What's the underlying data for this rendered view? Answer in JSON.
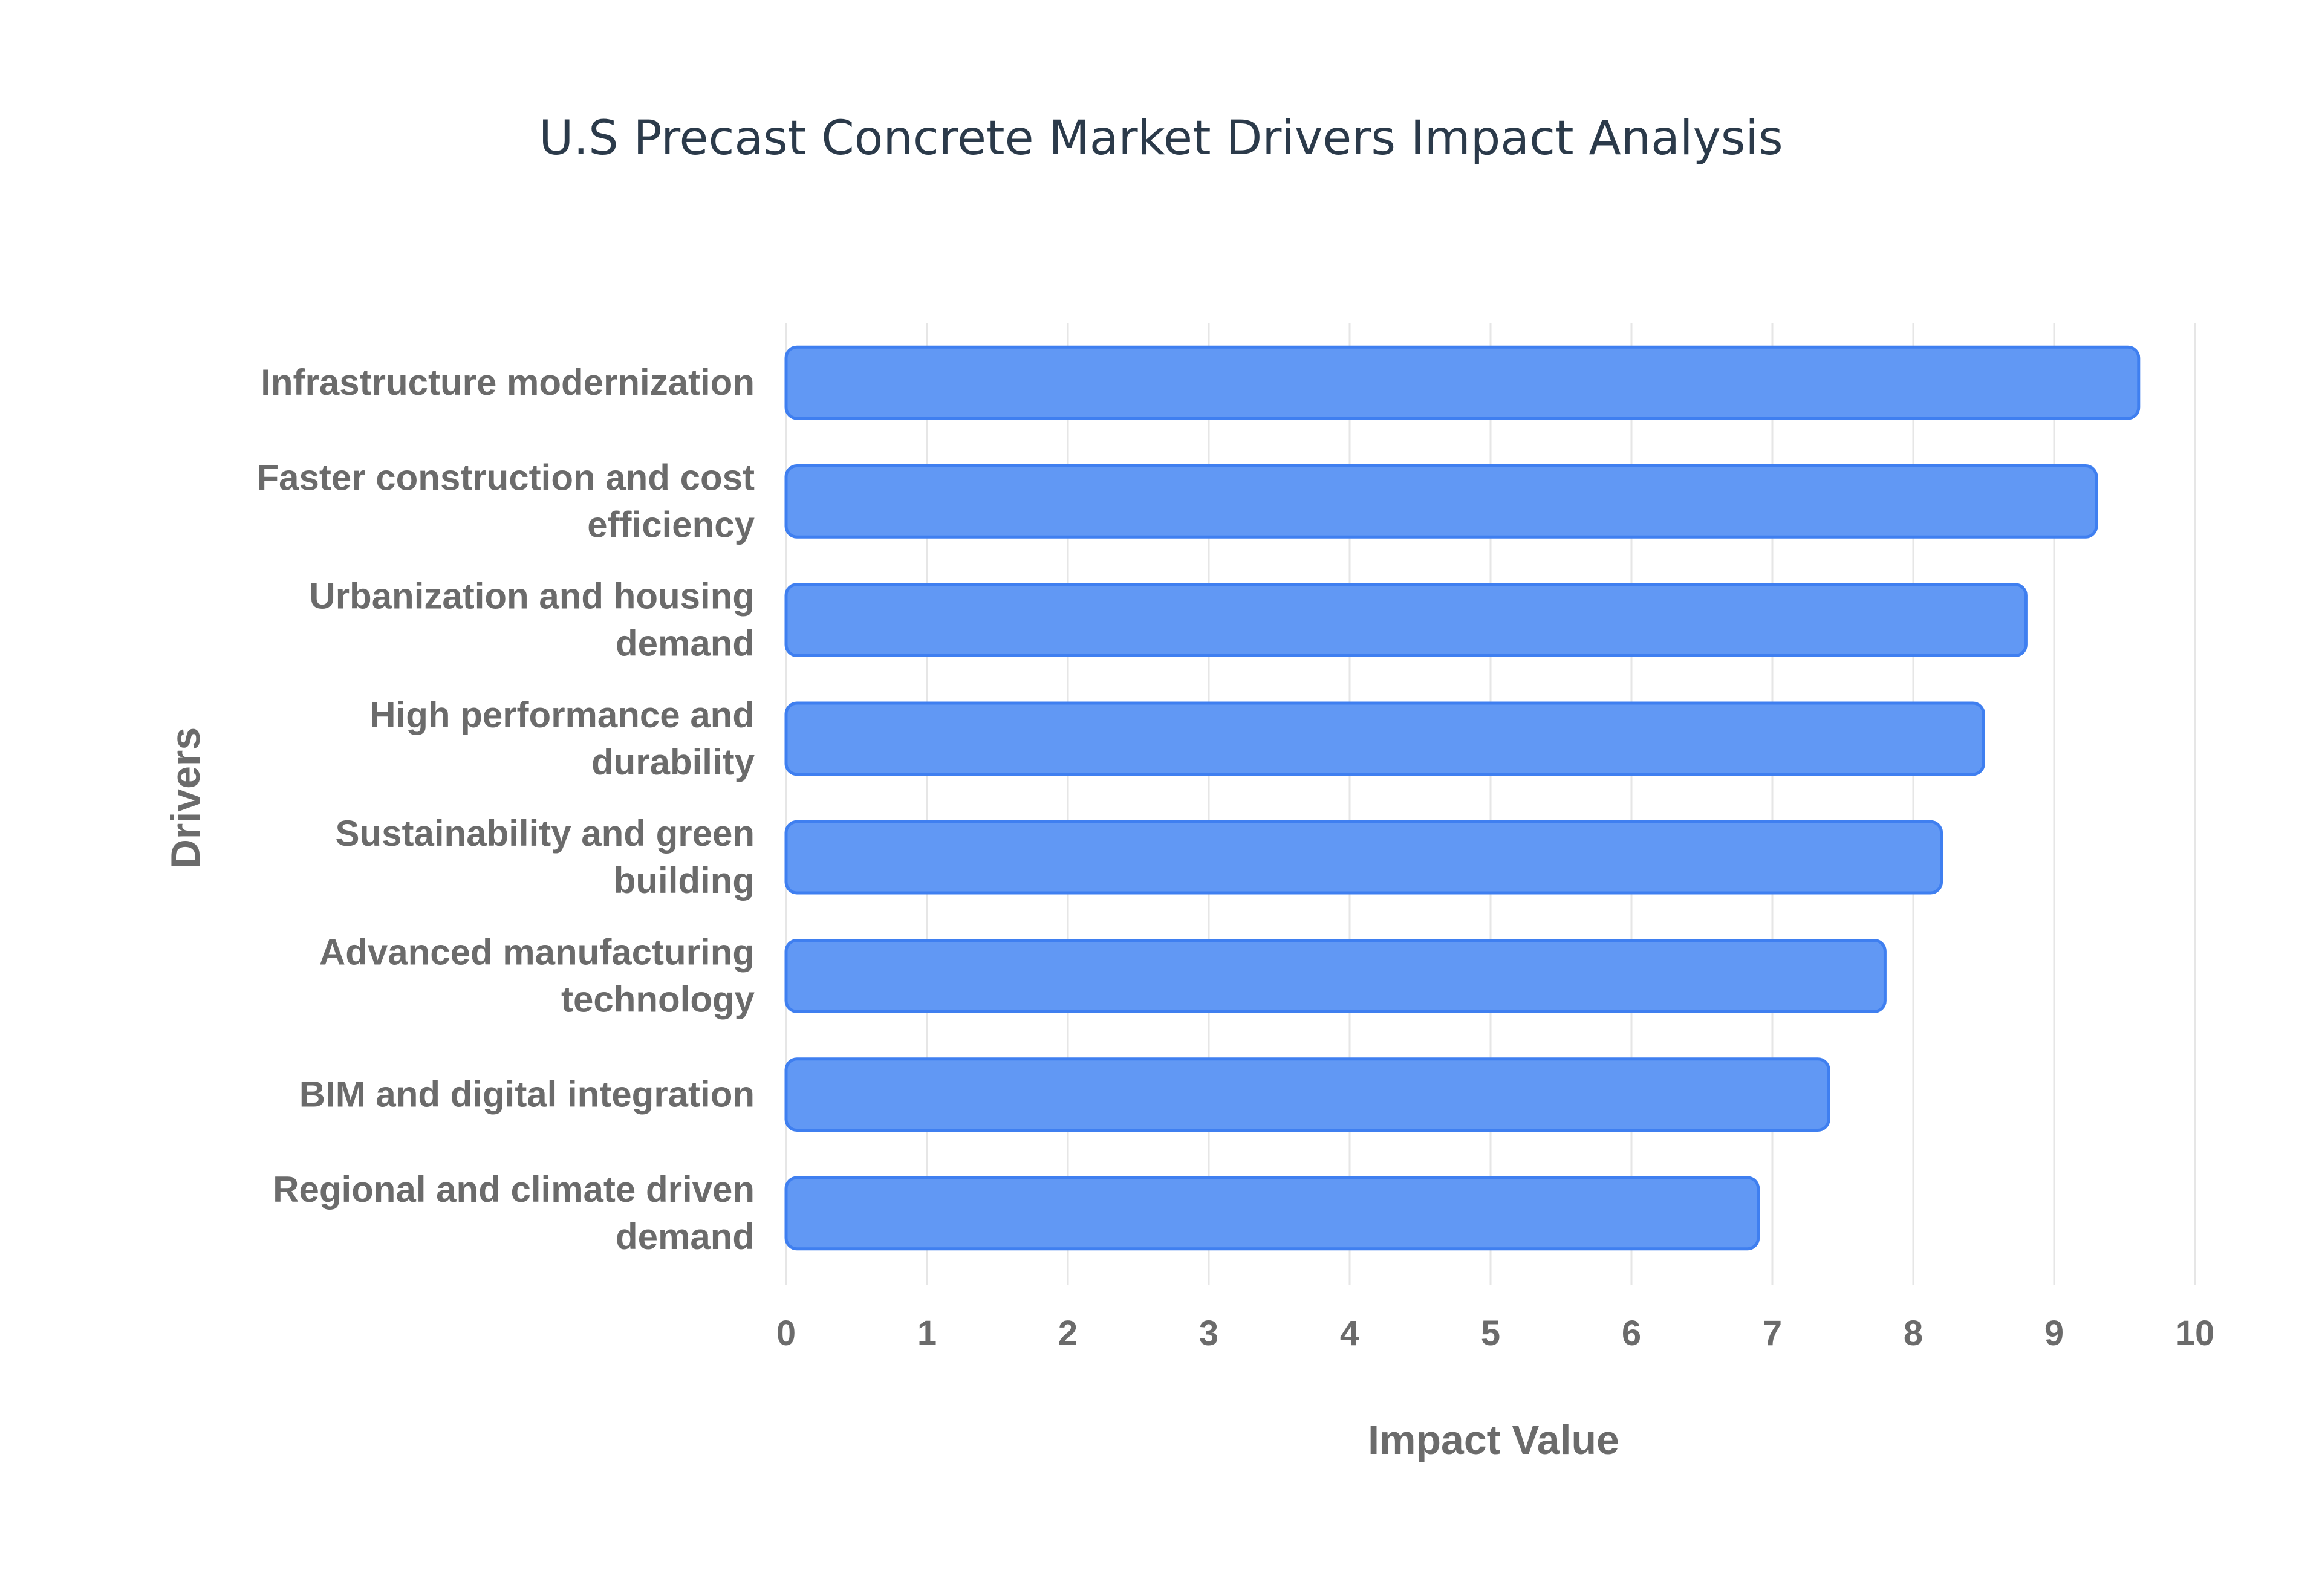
{
  "chart_data": {
    "type": "bar",
    "orientation": "horizontal",
    "title": "U.S Precast Concrete Market Drivers Impact Analysis",
    "xlabel": "Impact Value",
    "ylabel": "Drivers",
    "xlim": [
      0,
      10
    ],
    "xticks": [
      "0",
      "1",
      "2",
      "3",
      "4",
      "5",
      "6",
      "7",
      "8",
      "9",
      "10"
    ],
    "grid": true,
    "categories": [
      [
        "Infrastructure modernization"
      ],
      [
        "Faster construction and cost",
        "efficiency"
      ],
      [
        "Urbanization and housing",
        "demand"
      ],
      [
        "High performance and",
        "durability"
      ],
      [
        "Sustainability and green",
        "building"
      ],
      [
        "Advanced manufacturing",
        "technology"
      ],
      [
        "BIM and digital integration"
      ],
      [
        "Regional and climate driven",
        "demand"
      ]
    ],
    "values": [
      9.6,
      9.3,
      8.8,
      8.5,
      8.2,
      7.8,
      7.4,
      6.9
    ],
    "colors": {
      "bar_fill": "#6198f4",
      "bar_stroke": "#3f7ff0",
      "grid": "#e6e6e6",
      "title": "#2b3a4a",
      "label": "#6b6b6b"
    }
  }
}
